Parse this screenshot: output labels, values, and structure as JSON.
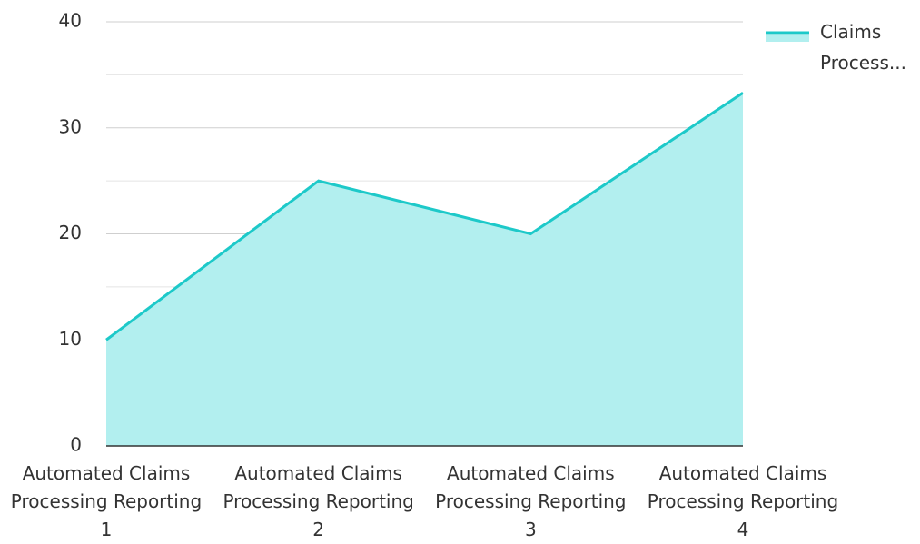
{
  "chart_data": {
    "type": "area",
    "categories": [
      "Automated Claims Processing Reporting 1",
      "Automated Claims Processing Reporting 2",
      "Automated Claims Processing Reporting 3",
      "Automated Claims Processing Reporting 4"
    ],
    "series": [
      {
        "name": "Claims Process...",
        "color": "#1dc9c9",
        "fill": "#b2efef",
        "values": [
          10,
          25,
          20,
          33.3
        ]
      }
    ],
    "ylim": [
      0,
      40
    ],
    "yticks": [
      0,
      10,
      20,
      30,
      40
    ],
    "grid": true,
    "legend": "top-right"
  }
}
